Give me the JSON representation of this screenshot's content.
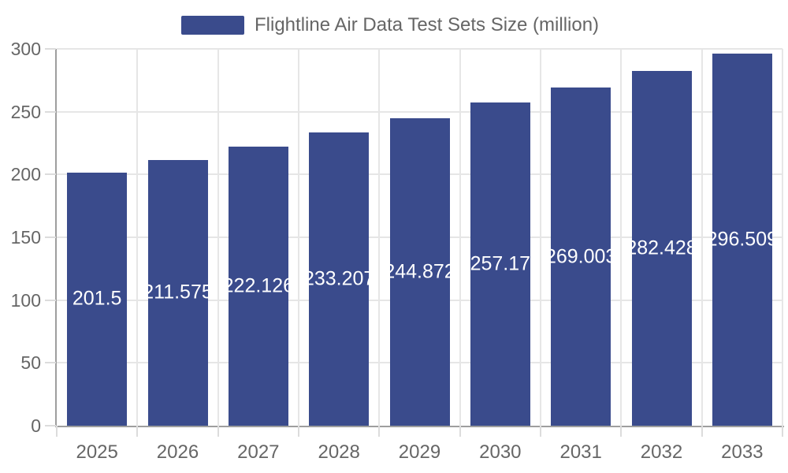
{
  "legend": {
    "label": "Flightline Air Data Test Sets Size (million)"
  },
  "colors": {
    "bar": "#3A4B8C",
    "value_label": "#FFFFFF",
    "axis_text": "#666666",
    "axis_line": "#9E9E9E",
    "grid": "#E6E6E6",
    "tick": "#DCDCDC",
    "background": "#FFFFFF"
  },
  "chart_data": {
    "type": "bar",
    "title": "Flightline Air Data Test Sets Size (million)",
    "categories": [
      "2025",
      "2026",
      "2027",
      "2028",
      "2029",
      "2030",
      "2031",
      "2032",
      "2033"
    ],
    "values": [
      201.5,
      211.575,
      222.126,
      233.207,
      244.872,
      257.17,
      269.003,
      282.428,
      296.509
    ],
    "value_labels": [
      "201.5",
      "211.575",
      "222.126",
      "233.207",
      "244.872",
      "257.17",
      "269.003",
      "282.428",
      "296.509"
    ],
    "xlabel": "",
    "ylabel": "",
    "ylim": [
      0,
      300
    ],
    "yticks": [
      0,
      50,
      100,
      150,
      200,
      250,
      300
    ],
    "grid": true,
    "legend_position": "top-center",
    "value_label_position": "bar-center"
  }
}
